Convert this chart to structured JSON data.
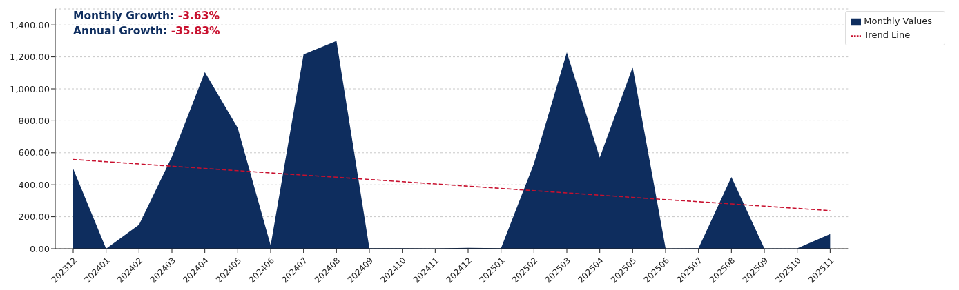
{
  "chart_data": {
    "type": "area",
    "categories": [
      "202312",
      "202401",
      "202402",
      "202403",
      "202404",
      "202405",
      "202406",
      "202407",
      "202408",
      "202409",
      "202410",
      "202411",
      "202412",
      "202501",
      "202502",
      "202503",
      "202504",
      "202505",
      "202506",
      "202507",
      "202508",
      "202509",
      "202510",
      "202511"
    ],
    "series": [
      {
        "name": "Monthly Values",
        "color": "#0e2d5e",
        "values": [
          500,
          0,
          150,
          575,
          1105,
          755,
          20,
          1215,
          1300,
          3,
          3,
          2,
          5,
          3,
          532,
          1228,
          570,
          1136,
          2,
          3,
          448,
          2,
          2,
          92
        ]
      },
      {
        "name": "Trend Line",
        "type": "line",
        "color": "#c8102e",
        "line_style": "dashed",
        "values": [
          558,
          544,
          530,
          516,
          502,
          488,
          474,
          460,
          447,
          433,
          419,
          405,
          391,
          377,
          363,
          349,
          335,
          321,
          307,
          294,
          280,
          266,
          252,
          238
        ]
      }
    ],
    "ylim": [
      0,
      1500
    ],
    "yticks": [
      {
        "value": 0,
        "label": "0.00"
      },
      {
        "value": 200,
        "label": "200.00"
      },
      {
        "value": 400,
        "label": "400.00"
      },
      {
        "value": 600,
        "label": "600.00"
      },
      {
        "value": 800,
        "label": "800.00"
      },
      {
        "value": 1000,
        "label": "1,000.00"
      },
      {
        "value": 1200,
        "label": "1,200.00"
      },
      {
        "value": 1400,
        "label": "1,400.00"
      }
    ],
    "grid": "y",
    "legend": "top right",
    "annotations": [
      "Monthly Growth:",
      "-3.63%",
      "Annual Growth:",
      "-35.83%"
    ]
  }
}
